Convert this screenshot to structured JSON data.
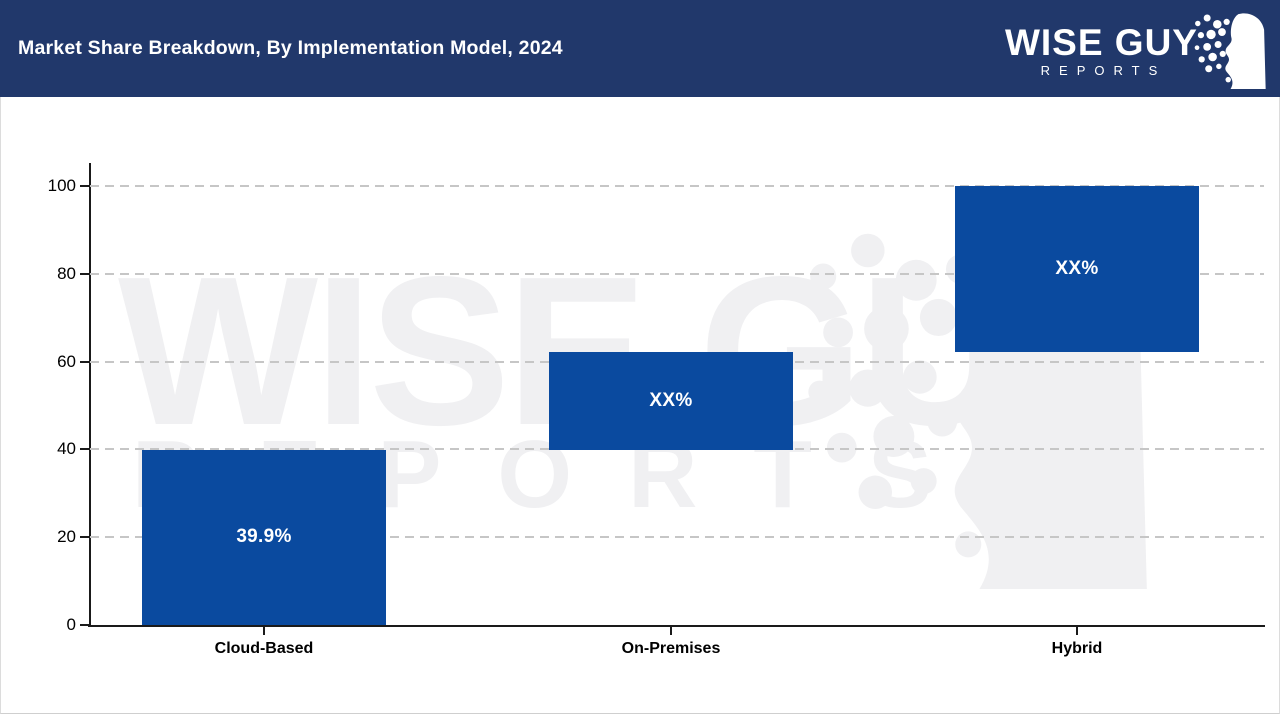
{
  "header": {
    "title": "Market Share Breakdown, By Implementation Model, 2024",
    "logo": {
      "brand": "WISE GUY",
      "subbrand": "REPORTS",
      "face_icon": "dotted-face-profile-icon"
    }
  },
  "watermark": {
    "brand": "WISE GUY",
    "subbrand": "REPORTS",
    "face_icon": "dotted-face-profile-icon"
  },
  "colors": {
    "header_bg": "#21386b",
    "bar_fill": "#0a4a9f",
    "bar_label": "#ffffff",
    "gridline": "#c6c6c6",
    "axis": "#1a1a1a",
    "watermark": "#f0f0f2"
  },
  "chart_data": {
    "type": "bar",
    "subtype": "waterfall",
    "title": "Market Share Breakdown, By Implementation Model, 2024",
    "categories": [
      "Cloud-Based",
      "On-Premises",
      "Hybrid"
    ],
    "bars": [
      {
        "category": "Cloud-Based",
        "from": 0,
        "to": 39.9,
        "label": "39.9%"
      },
      {
        "category": "On-Premises",
        "from": 39.9,
        "to": 62.2,
        "label": "XX%"
      },
      {
        "category": "Hybrid",
        "from": 62.2,
        "to": 100,
        "label": "XX%"
      }
    ],
    "y_ticks": [
      0,
      20,
      40,
      60,
      80,
      100
    ],
    "ylim": [
      0,
      105
    ],
    "xlabel": "",
    "ylabel": "",
    "grid": "horizontal-dashed",
    "legend_position": "none"
  }
}
